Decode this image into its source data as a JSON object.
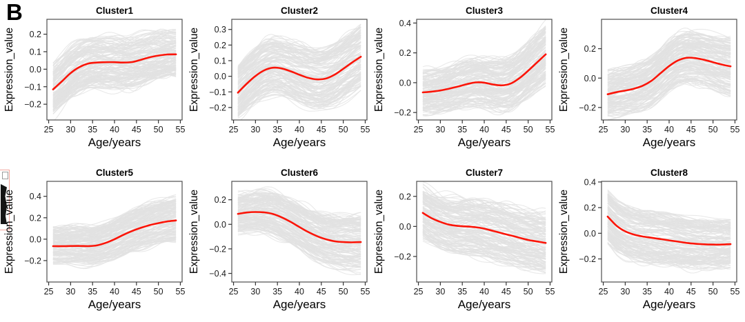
{
  "panel_label": "B",
  "colors": {
    "trend_line": "#FB1407",
    "background_lines": "#E1E1E1",
    "panel_border": "#4D4D4D",
    "tick_mark": "#333333",
    "axis_text": "#1A1A1A"
  },
  "chart_data": [
    {
      "type": "line",
      "title": "Cluster1",
      "xlabel": "Age/years",
      "ylabel": "Expression_value",
      "x_ticks": [
        25,
        30,
        35,
        40,
        45,
        50,
        55
      ],
      "y_ticks": [
        -0.2,
        -0.1,
        0.0,
        0.1,
        0.2
      ],
      "xlim": [
        24.6,
        55.4
      ],
      "ylim": [
        -0.29,
        0.285
      ],
      "x": [
        26,
        28,
        30,
        32,
        34,
        36,
        38,
        40,
        42,
        44,
        46,
        48,
        50,
        52,
        54
      ],
      "trend": [
        -0.115,
        -0.07,
        -0.022,
        0.012,
        0.032,
        0.038,
        0.04,
        0.04,
        0.038,
        0.041,
        0.054,
        0.068,
        0.078,
        0.084,
        0.085
      ],
      "band": [
        0.145,
        0.13
      ],
      "n_background_lines": 150,
      "legend": "none",
      "grid": false
    },
    {
      "type": "line",
      "title": "Cluster2",
      "xlabel": "Age/years",
      "ylabel": "Expression_value",
      "x_ticks": [
        25,
        30,
        35,
        40,
        45,
        50,
        55
      ],
      "y_ticks": [
        -0.2,
        -0.1,
        0.0,
        0.1,
        0.2,
        0.3
      ],
      "xlim": [
        24.6,
        55.4
      ],
      "ylim": [
        -0.28,
        0.365
      ],
      "x": [
        26,
        28,
        30,
        32,
        34,
        36,
        38,
        40,
        42,
        44,
        46,
        48,
        50,
        52,
        54
      ],
      "trend": [
        -0.105,
        -0.048,
        0.002,
        0.038,
        0.055,
        0.05,
        0.032,
        0.01,
        -0.01,
        -0.02,
        -0.015,
        0.01,
        0.048,
        0.088,
        0.125
      ],
      "band": [
        0.16,
        0.19
      ],
      "n_background_lines": 150,
      "legend": "none",
      "grid": false
    },
    {
      "type": "line",
      "title": "Cluster3",
      "xlabel": "Age/years",
      "ylabel": "Expression_value",
      "x_ticks": [
        25,
        30,
        35,
        40,
        45,
        50,
        55
      ],
      "y_ticks": [
        -0.2,
        0.0,
        0.2,
        0.4
      ],
      "xlim": [
        24.6,
        55.4
      ],
      "ylim": [
        -0.25,
        0.425
      ],
      "x": [
        26,
        28,
        30,
        32,
        34,
        36,
        38,
        40,
        42,
        44,
        46,
        48,
        50,
        52,
        54
      ],
      "trend": [
        -0.065,
        -0.06,
        -0.052,
        -0.04,
        -0.026,
        -0.01,
        0.002,
        0.0,
        -0.012,
        -0.018,
        -0.006,
        0.03,
        0.08,
        0.135,
        0.19
      ],
      "band": [
        0.13,
        0.185
      ],
      "n_background_lines": 150,
      "legend": "none",
      "grid": false
    },
    {
      "type": "line",
      "title": "Cluster4",
      "xlabel": "Age/years",
      "ylabel": "Expression_value",
      "x_ticks": [
        25,
        30,
        35,
        40,
        45,
        50,
        55
      ],
      "y_ticks": [
        -0.2,
        0.0,
        0.2
      ],
      "xlim": [
        24.6,
        55.4
      ],
      "ylim": [
        -0.285,
        0.4
      ],
      "x": [
        26,
        28,
        30,
        32,
        34,
        36,
        38,
        40,
        42,
        44,
        46,
        48,
        50,
        52,
        54
      ],
      "trend": [
        -0.11,
        -0.096,
        -0.085,
        -0.072,
        -0.052,
        -0.018,
        0.032,
        0.082,
        0.12,
        0.138,
        0.136,
        0.124,
        0.108,
        0.092,
        0.08
      ],
      "band": [
        0.14,
        0.185
      ],
      "n_background_lines": 150,
      "legend": "none",
      "grid": false
    },
    {
      "type": "line",
      "title": "Cluster5",
      "xlabel": "Age/years",
      "ylabel": "Expression_value",
      "x_ticks": [
        25,
        30,
        35,
        40,
        45,
        50,
        55
      ],
      "y_ticks": [
        -0.2,
        0.0,
        0.2,
        0.4
      ],
      "xlim": [
        24.6,
        55.4
      ],
      "ylim": [
        -0.4,
        0.54
      ],
      "x": [
        26,
        28,
        30,
        32,
        34,
        36,
        38,
        40,
        42,
        44,
        46,
        48,
        50,
        52,
        54
      ],
      "trend": [
        -0.065,
        -0.066,
        -0.064,
        -0.063,
        -0.065,
        -0.058,
        -0.034,
        0.0,
        0.04,
        0.076,
        0.106,
        0.131,
        0.15,
        0.165,
        0.175
      ],
      "band": [
        0.16,
        0.2
      ],
      "n_background_lines": 150,
      "legend": "none",
      "grid": false
    },
    {
      "type": "line",
      "title": "Cluster6",
      "xlabel": "Age/years",
      "ylabel": "Expression_value",
      "x_ticks": [
        25,
        30,
        35,
        40,
        45,
        50,
        55
      ],
      "y_ticks": [
        -0.4,
        -0.2,
        0.0,
        0.2
      ],
      "xlim": [
        24.6,
        55.4
      ],
      "ylim": [
        -0.47,
        0.35
      ],
      "x": [
        26,
        28,
        30,
        32,
        34,
        36,
        38,
        40,
        42,
        44,
        46,
        48,
        50,
        52,
        54
      ],
      "trend": [
        0.085,
        0.096,
        0.1,
        0.097,
        0.084,
        0.056,
        0.02,
        -0.022,
        -0.062,
        -0.096,
        -0.121,
        -0.138,
        -0.145,
        -0.147,
        -0.145
      ],
      "band": [
        0.15,
        0.22
      ],
      "n_background_lines": 150,
      "legend": "none",
      "grid": false
    },
    {
      "type": "line",
      "title": "Cluster7",
      "xlabel": "Age/years",
      "ylabel": "Expression_value",
      "x_ticks": [
        25,
        30,
        35,
        40,
        45,
        50,
        55
      ],
      "y_ticks": [
        -0.2,
        0.0,
        0.2
      ],
      "xlim": [
        24.6,
        55.4
      ],
      "ylim": [
        -0.37,
        0.3
      ],
      "x": [
        26,
        28,
        30,
        32,
        34,
        36,
        38,
        40,
        42,
        44,
        46,
        48,
        50,
        52,
        54
      ],
      "trend": [
        0.09,
        0.055,
        0.03,
        0.012,
        0.003,
        0.0,
        -0.005,
        -0.015,
        -0.03,
        -0.045,
        -0.06,
        -0.075,
        -0.09,
        -0.1,
        -0.11
      ],
      "band": [
        0.17,
        0.19
      ],
      "n_background_lines": 150,
      "legend": "none",
      "grid": false
    },
    {
      "type": "line",
      "title": "Cluster8",
      "xlabel": "Age/years",
      "ylabel": "Expression_value",
      "x_ticks": [
        25,
        30,
        35,
        40,
        45,
        50,
        55
      ],
      "y_ticks": [
        -0.2,
        0.0,
        0.2,
        0.4
      ],
      "xlim": [
        24.6,
        55.4
      ],
      "ylim": [
        -0.38,
        0.405
      ],
      "x": [
        26,
        28,
        30,
        32,
        34,
        36,
        38,
        40,
        42,
        44,
        46,
        48,
        50,
        52,
        54
      ],
      "trend": [
        0.13,
        0.06,
        0.015,
        -0.01,
        -0.025,
        -0.035,
        -0.045,
        -0.055,
        -0.065,
        -0.075,
        -0.082,
        -0.086,
        -0.088,
        -0.088,
        -0.085
      ],
      "band": [
        0.2,
        0.18
      ],
      "n_background_lines": 150,
      "legend": "none",
      "grid": false
    }
  ]
}
